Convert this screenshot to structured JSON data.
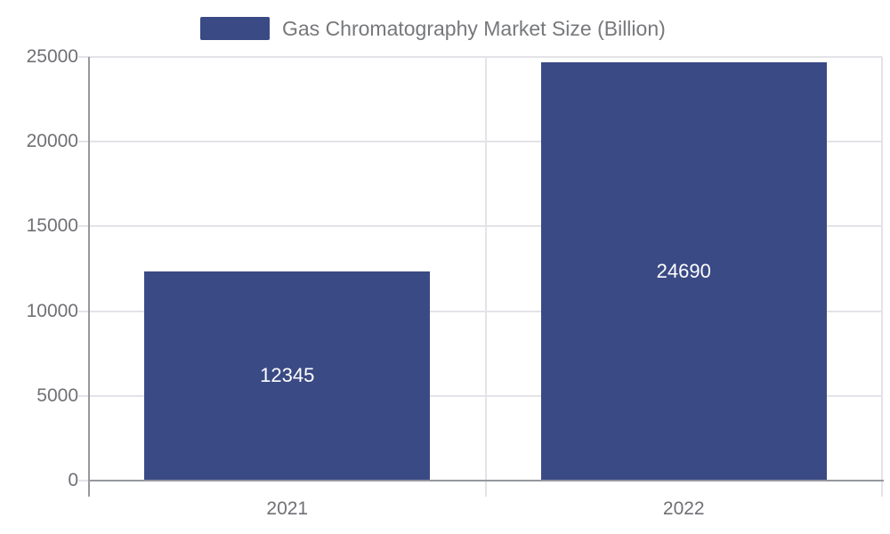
{
  "chart_data": {
    "type": "bar",
    "title": "Gas Chromatography Market Size (Billion)",
    "categories": [
      "2021",
      "2022"
    ],
    "series": [
      {
        "name": "Gas Chromatography Market Size (Billion)",
        "values": [
          12345,
          24690
        ]
      }
    ],
    "bar_value_labels": [
      "12345",
      "24690"
    ],
    "xlabel": "",
    "ylabel": "",
    "ylim": [
      0,
      25000
    ],
    "yticks": [
      0,
      5000,
      10000,
      15000,
      20000,
      25000
    ],
    "grid": true,
    "legend": {
      "position": "top-center",
      "entries": [
        "Gas Chromatography Market Size (Billion)"
      ]
    },
    "bar_width_frac": 0.72,
    "colors": {
      "bar": "#3A4A85",
      "bar_label": "#FFFFFF",
      "grid": "#E3E3E8",
      "axis_line": "#96989E",
      "axis_text": "#707075",
      "legend_text": "#77787B",
      "background": "#FFFFFF"
    }
  }
}
